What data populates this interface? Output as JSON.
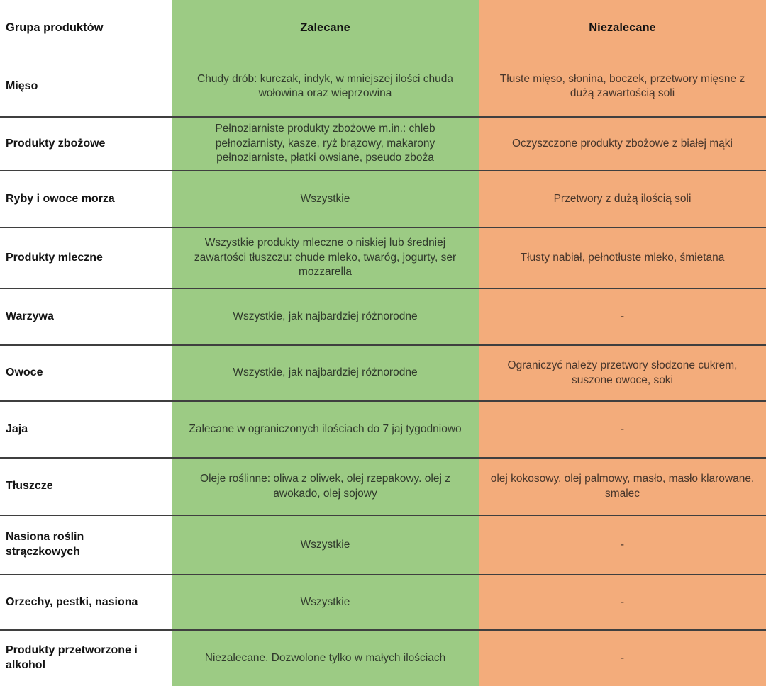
{
  "colors": {
    "recommended_bg": "#9ccb84",
    "not_recommended_bg": "#f3ac7b",
    "row_border": "#3f3f3f",
    "label_text": "#141414",
    "recommended_text": "#303a2c",
    "not_recommended_text": "#48362b"
  },
  "table": {
    "columns": [
      {
        "key": "group",
        "label": "Grupa produktów"
      },
      {
        "key": "recommended",
        "label": "Zalecane"
      },
      {
        "key": "not_recommended",
        "label": "Niezalecane"
      }
    ],
    "rows": [
      {
        "group": "Mięso",
        "recommended": "Chudy drób: kurczak, indyk, w mniejszej ilości chuda wołowina oraz wieprzowina",
        "not_recommended": "Tłuste mięso, słonina, boczek, przetwory mięsne z dużą zawartością soli"
      },
      {
        "group": "Produkty zbożowe",
        "recommended": "Pełnoziarniste produkty zbożowe m.in.: chleb pełnoziarnisty, kasze, ryż brązowy, makarony pełnoziarniste, płatki owsiane, pseudo zboża",
        "not_recommended": "Oczyszczone produkty zbożowe z białej mąki"
      },
      {
        "group": "Ryby i owoce morza",
        "recommended": "Wszystkie",
        "not_recommended": "Przetwory z dużą ilością soli"
      },
      {
        "group": "Produkty mleczne",
        "recommended": "Wszystkie produkty mleczne o niskiej lub średniej zawartości tłuszczu: chude mleko, twaróg, jogurty, ser mozzarella",
        "not_recommended": "Tłusty nabiał, pełnotłuste mleko, śmietana"
      },
      {
        "group": "Warzywa",
        "recommended": "Wszystkie, jak najbardziej różnorodne",
        "not_recommended": "-"
      },
      {
        "group": "Owoce",
        "recommended": "Wszystkie, jak najbardziej różnorodne",
        "not_recommended": "Ograniczyć należy przetwory słodzone cukrem, suszone owoce, soki"
      },
      {
        "group": "Jaja",
        "recommended": "Zalecane w ograniczonych ilościach do 7 jaj tygodniowo",
        "not_recommended": "-"
      },
      {
        "group": "Tłuszcze",
        "recommended": "Oleje roślinne: oliwa z oliwek, olej rzepakowy. olej z awokado, olej sojowy",
        "not_recommended": "olej kokosowy, olej palmowy, masło, masło klarowane, smalec"
      },
      {
        "group": "Nasiona roślin strączkowych",
        "recommended": "Wszystkie",
        "not_recommended": "-"
      },
      {
        "group": "Orzechy, pestki, nasiona",
        "recommended": "Wszystkie",
        "not_recommended": "-"
      },
      {
        "group": "Produkty przetworzone i alkohol",
        "recommended": "Niezalecane. Dozwolone tylko w małych ilościach",
        "not_recommended": "-"
      }
    ]
  }
}
